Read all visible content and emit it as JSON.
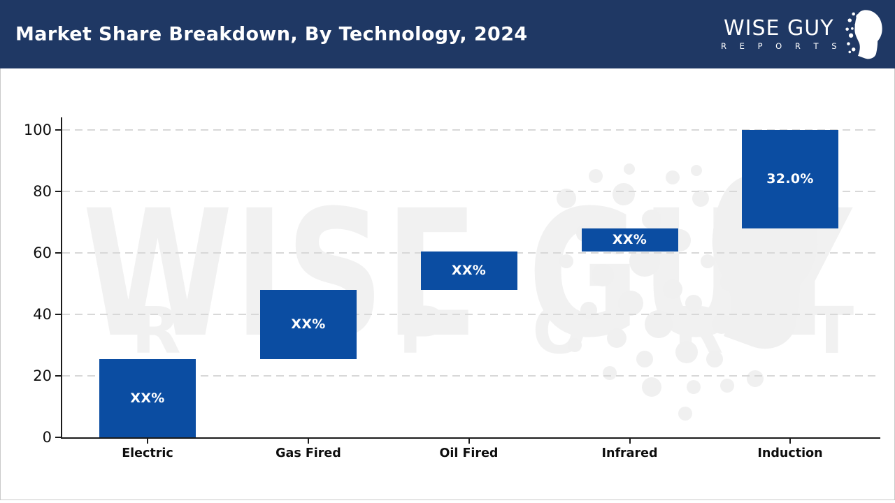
{
  "header": {
    "title": "Market Share Breakdown, By Technology, 2024",
    "logo_line1": "WISE GUY",
    "logo_line2": "R E P O R T S"
  },
  "watermark": {
    "line1": "WISE GUY",
    "line2": "R E P O R T S"
  },
  "chart_data": {
    "type": "bar",
    "variant": "waterfall",
    "title": "Market Share Breakdown, By Technology, 2024",
    "categories": [
      "Electric",
      "Gas Fired",
      "Oil Fired",
      "Infrared",
      "Induction"
    ],
    "series": [
      {
        "name": "Market Share (%)",
        "segments": [
          {
            "category": "Electric",
            "start": 0,
            "end": 25.5,
            "label": "XX%"
          },
          {
            "category": "Gas Fired",
            "start": 25.5,
            "end": 48,
            "label": "XX%"
          },
          {
            "category": "Oil Fired",
            "start": 48,
            "end": 60.5,
            "label": "XX%"
          },
          {
            "category": "Infrared",
            "start": 60.5,
            "end": 68,
            "label": "XX%"
          },
          {
            "category": "Induction",
            "start": 68,
            "end": 100,
            "label": "32.0%"
          }
        ]
      }
    ],
    "xlabel": "",
    "ylabel": "",
    "ylim": [
      0,
      100
    ],
    "yticks": [
      0,
      20,
      40,
      60,
      80,
      100
    ],
    "grid": {
      "axis": "y",
      "style": "dashed",
      "color": "#d8d8d8"
    },
    "legend": "none",
    "bar_color": "#0b4da2",
    "bar_label_color": "#ffffff"
  },
  "colors": {
    "header_bg": "#1f3864",
    "bar": "#0b4da2",
    "axis": "#1a1a1a",
    "grid": "#d8d8d8",
    "watermark": "#f1f1f1",
    "frame_border": "#c9c9c9"
  }
}
